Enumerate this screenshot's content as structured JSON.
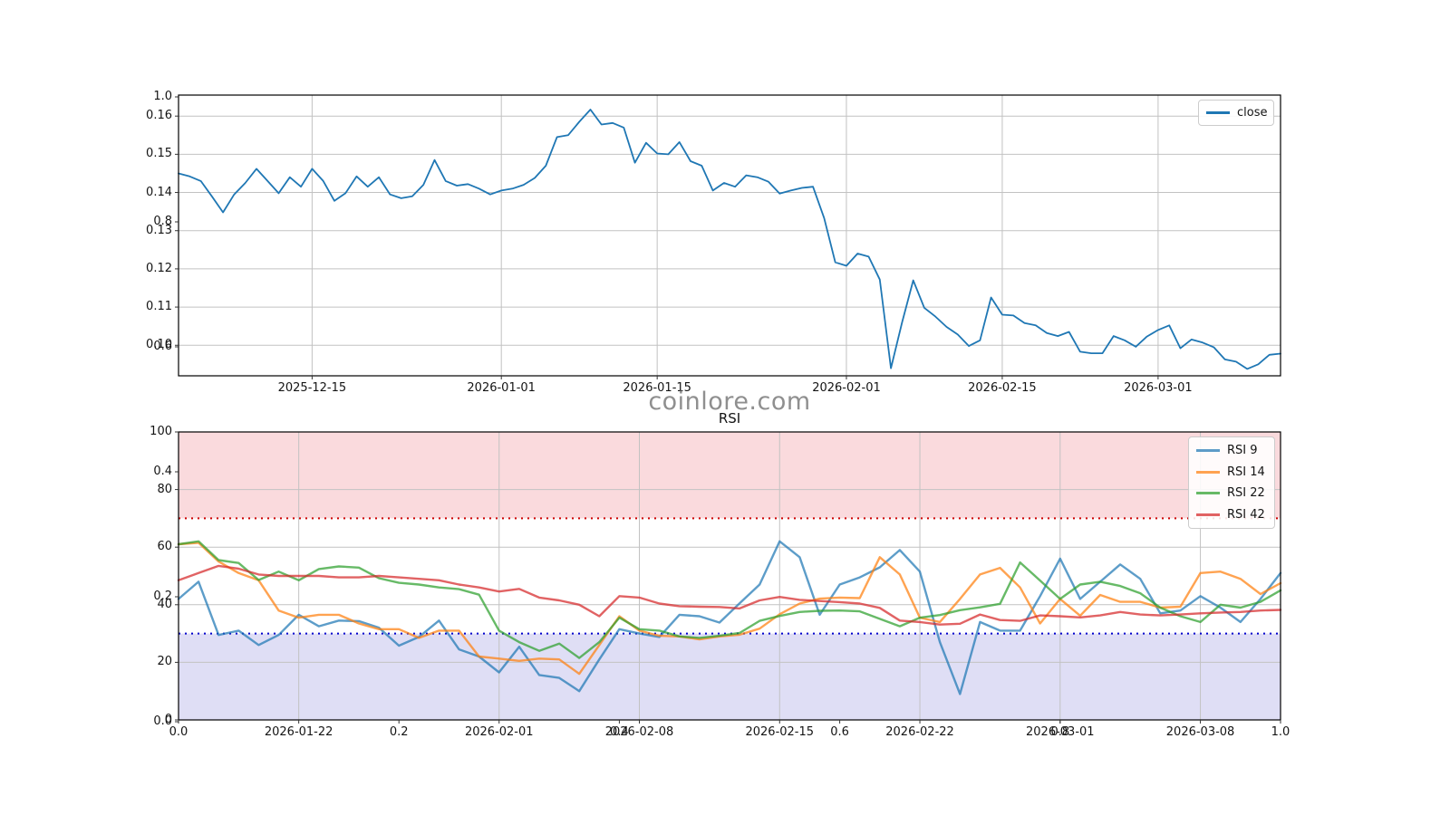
{
  "watermark": "coinlore.com",
  "overlay_axis": {
    "x_tick_labels": [
      "0.0",
      "0.2",
      "0.4",
      "0.6",
      "0.8",
      "1.0"
    ],
    "y_tick_labels": [
      "1.0",
      "0.8",
      "0.6",
      "0.4",
      "0.2",
      "0.0"
    ]
  },
  "chart_data": [
    {
      "type": "line",
      "title": "",
      "x_start": "2025-12-03",
      "x_end": "2026-03-12",
      "freq": "daily",
      "ylim": [
        0.092,
        0.1655
      ],
      "grid": true,
      "legend_position": "upper right",
      "y_ticks": [
        {
          "v": 0.16,
          "label": "0.16"
        },
        {
          "v": 0.15,
          "label": "0.15"
        },
        {
          "v": 0.14,
          "label": "0.14"
        },
        {
          "v": 0.13,
          "label": "0.13"
        },
        {
          "v": 0.12,
          "label": "0.12"
        },
        {
          "v": 0.11,
          "label": "0.11"
        },
        {
          "v": 0.1,
          "label": "0.10"
        }
      ],
      "x_gridlines": [
        {
          "day": 12,
          "label": "2025-12-15"
        },
        {
          "day": 29,
          "label": "2026-01-01"
        },
        {
          "day": 43,
          "label": "2026-01-15"
        },
        {
          "day": 60,
          "label": "2026-02-01"
        },
        {
          "day": 74,
          "label": "2026-02-15"
        },
        {
          "day": 88,
          "label": "2026-03-01"
        }
      ],
      "series": [
        {
          "name": "close",
          "color": "#1f77b4",
          "opacity": 1,
          "width": 1.8,
          "values": [
            0.145,
            0.1442,
            0.143,
            0.139,
            0.1348,
            0.1395,
            0.1425,
            0.1462,
            0.143,
            0.1398,
            0.144,
            0.1415,
            0.1462,
            0.143,
            0.1378,
            0.1398,
            0.1442,
            0.1415,
            0.144,
            0.1395,
            0.1385,
            0.139,
            0.142,
            0.1485,
            0.143,
            0.1418,
            0.1422,
            0.141,
            0.1395,
            0.1405,
            0.141,
            0.142,
            0.1438,
            0.147,
            0.1545,
            0.155,
            0.1585,
            0.1617,
            0.1578,
            0.1582,
            0.157,
            0.1478,
            0.153,
            0.1502,
            0.15,
            0.1532,
            0.1482,
            0.147,
            0.1405,
            0.1425,
            0.1415,
            0.1445,
            0.144,
            0.1428,
            0.1397,
            0.1405,
            0.1412,
            0.1415,
            0.1333,
            0.1217,
            0.1208,
            0.124,
            0.1232,
            0.1172,
            0.094,
            0.106,
            0.117,
            0.1098,
            0.1075,
            0.1048,
            0.1028,
            0.0998,
            0.1013,
            0.1125,
            0.108,
            0.1078,
            0.1058,
            0.1052,
            0.1032,
            0.1024,
            0.1035,
            0.0983,
            0.0979,
            0.0979,
            0.1024,
            0.1013,
            0.0996,
            0.1023,
            0.104,
            0.1052,
            0.0992,
            0.1015,
            0.1007,
            0.0995,
            0.0963,
            0.0957,
            0.0938,
            0.095,
            0.0975,
            0.0978
          ]
        }
      ]
    },
    {
      "type": "line",
      "title": "RSI",
      "x_start": "2026-01-16",
      "x_end": "2026-03-12",
      "freq": "daily",
      "ylim": [
        0,
        100
      ],
      "grid": true,
      "legend_position": "upper right",
      "y_ticks": [
        {
          "v": 100,
          "label": "100"
        },
        {
          "v": 80,
          "label": "80"
        },
        {
          "v": 60,
          "label": "60"
        },
        {
          "v": 40,
          "label": "40"
        },
        {
          "v": 20,
          "label": "20"
        },
        {
          "v": 0,
          "label": "0"
        }
      ],
      "x_gridlines": [
        {
          "day": 6,
          "label": "2026-01-22"
        },
        {
          "day": 16,
          "label": "2026-02-01"
        },
        {
          "day": 23,
          "label": "2026-02-08"
        },
        {
          "day": 30,
          "label": "2026-02-15"
        },
        {
          "day": 37,
          "label": "2026-02-22"
        },
        {
          "day": 44,
          "label": "2026-03-01"
        },
        {
          "day": 51,
          "label": "2026-03-08"
        }
      ],
      "bands": [
        {
          "from": 70,
          "to": 100,
          "color": "#fadadd",
          "meaning": "overbought"
        },
        {
          "from": 0,
          "to": 30,
          "color": "#dfdef5",
          "meaning": "oversold"
        }
      ],
      "hlines": [
        {
          "v": 70,
          "color": "#cc0000",
          "style": "dotted"
        },
        {
          "v": 30,
          "color": "#0000cc",
          "style": "dotted"
        }
      ],
      "series": [
        {
          "name": "RSI 9",
          "color": "#1f77b4",
          "opacity": 0.72,
          "width": 2.4,
          "values": [
            42,
            48,
            29.5,
            31,
            26,
            29.5,
            36.5,
            32.5,
            34.5,
            34.3,
            32,
            25.8,
            28.8,
            34.5,
            24.5,
            22,
            16.5,
            25.4,
            15.6,
            14.6,
            10,
            21,
            31.5,
            30,
            28.8,
            36.5,
            36,
            33.8,
            40.5,
            47,
            62,
            56.5,
            36.5,
            47,
            49.5,
            53,
            59,
            51.5,
            27,
            9,
            34,
            31,
            31,
            43,
            56,
            42,
            48,
            54,
            49,
            37,
            38,
            43,
            39,
            34,
            42,
            51
          ]
        },
        {
          "name": "RSI 14",
          "color": "#ff7f0e",
          "opacity": 0.72,
          "width": 2.4,
          "values": [
            61,
            61.5,
            55,
            51,
            48.5,
            38,
            35.5,
            36.5,
            36.5,
            33.5,
            31.5,
            31.5,
            28.5,
            31,
            31,
            22,
            21.3,
            20.5,
            21.3,
            21,
            16,
            26,
            36,
            31,
            29.2,
            29,
            28,
            29,
            29.6,
            31.7,
            36.7,
            40.4,
            42.1,
            42.5,
            42.3,
            56.5,
            50.5,
            35.5,
            34,
            42,
            50.5,
            52.8,
            46,
            33.5,
            42,
            36.2,
            43.4,
            41,
            41,
            39,
            39.3,
            51,
            51.5,
            49,
            43.7,
            47.5
          ]
        },
        {
          "name": "RSI 22",
          "color": "#2ca02c",
          "opacity": 0.72,
          "width": 2.4,
          "values": [
            61,
            62,
            55.5,
            54.5,
            48.6,
            51.5,
            48.5,
            52.4,
            53.3,
            52.9,
            49.2,
            47.6,
            47,
            46,
            45.4,
            43.5,
            31,
            27,
            24,
            26.5,
            21.5,
            27,
            35.5,
            31.5,
            31,
            29,
            28.5,
            29.2,
            30.2,
            34.4,
            36.1,
            37.5,
            37.9,
            38,
            37.7,
            35.1,
            32.5,
            35.5,
            36.4,
            38.1,
            39.1,
            40.3,
            54.7,
            48.4,
            42,
            47,
            48,
            46.5,
            44,
            39,
            36,
            34,
            40,
            39,
            41,
            45
          ]
        },
        {
          "name": "RSI 42",
          "color": "#d62728",
          "opacity": 0.72,
          "width": 2.4,
          "values": [
            48.5,
            51,
            53.5,
            52.5,
            50.5,
            50,
            50,
            50,
            49.5,
            49.5,
            50,
            49.5,
            49,
            48.5,
            47,
            46,
            44.6,
            45.5,
            42.5,
            41.5,
            40,
            36,
            43,
            42.5,
            40.4,
            39.5,
            39.3,
            39.2,
            38.7,
            41.5,
            42.7,
            41.7,
            41.3,
            40.9,
            40.4,
            38.9,
            34.5,
            34,
            33.1,
            33.4,
            36.6,
            34.7,
            34.4,
            36.3,
            36,
            35.6,
            36.3,
            37.5,
            36.6,
            36.3,
            36.6,
            37,
            37.3,
            37.5,
            38,
            38.2
          ]
        }
      ]
    }
  ]
}
